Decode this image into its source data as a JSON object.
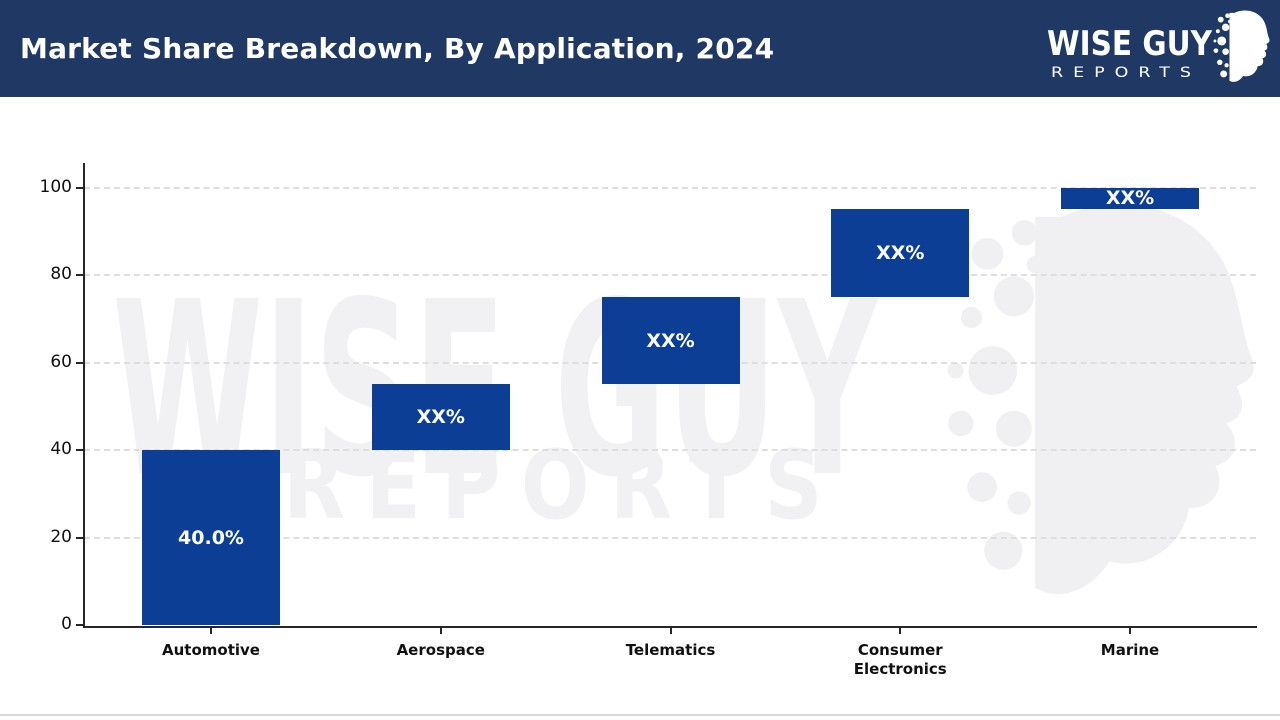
{
  "header": {
    "title": "Market Share Breakdown, By Application, 2024",
    "bg_color": "#1f3864",
    "logo": {
      "line1": "WISE GUY",
      "line2": "REPORTS"
    }
  },
  "watermark": {
    "line1": "WISE GUY",
    "line2": "REPORTS"
  },
  "chart_data": {
    "type": "bar",
    "subtype": "waterfall",
    "title": "Market Share Breakdown, By Application, 2024",
    "categories": [
      "Automotive",
      "Aerospace",
      "Telematics",
      "Consumer Electronics",
      "Marine"
    ],
    "segments": [
      [
        0,
        40
      ],
      [
        40,
        55
      ],
      [
        55,
        75
      ],
      [
        75,
        95
      ],
      [
        95,
        100
      ]
    ],
    "values": [
      40,
      15,
      20,
      20,
      5
    ],
    "bar_labels": [
      "40.0%",
      "XX%",
      "XX%",
      "XX%",
      "XX%"
    ],
    "yticks": [
      0,
      20,
      40,
      60,
      80,
      100
    ],
    "ylim": [
      0,
      105
    ],
    "xlabel": "",
    "ylabel": "",
    "bar_color": "#0b3e94",
    "axis_color": "#262626",
    "grid": "horizontal dashed",
    "grid_color": "#dedede",
    "legend": "none"
  }
}
